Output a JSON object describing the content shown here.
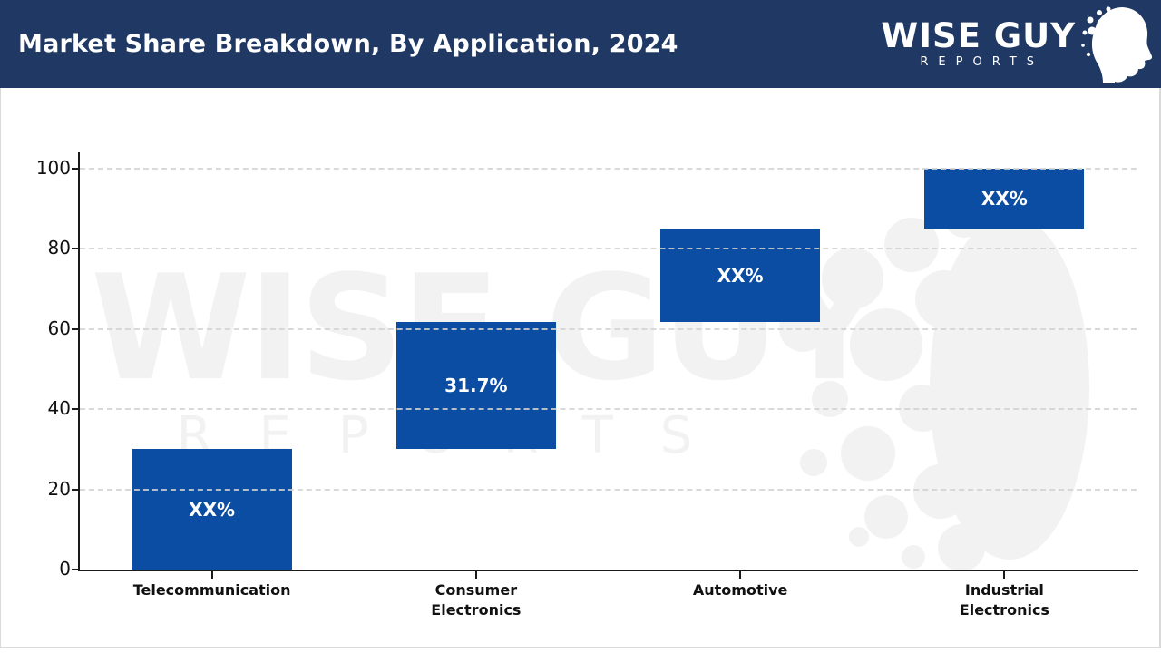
{
  "header": {
    "title": "Market Share Breakdown, By Application, 2024",
    "logo": {
      "line1": "WISE GUY",
      "line2": "REPORTS"
    }
  },
  "watermark": {
    "line1": "WISE GUY",
    "line2": "REPORTS"
  },
  "chart_data": {
    "type": "bar",
    "subtype": "waterfall",
    "title": "Market Share Breakdown, By Application, 2024",
    "categories": [
      "Telecommunication",
      "Consumer\nElectronics",
      "Automotive",
      "Industrial\nElectronics"
    ],
    "segments": [
      {
        "category": "Telecommunication",
        "start": 0,
        "end": 30,
        "label": "XX%"
      },
      {
        "category": "Consumer Electronics",
        "start": 30,
        "end": 61.7,
        "label": "31.7%"
      },
      {
        "category": "Automotive",
        "start": 61.7,
        "end": 85,
        "label": "XX%"
      },
      {
        "category": "Industrial Electronics",
        "start": 85,
        "end": 100,
        "label": "XX%"
      }
    ],
    "ylim": [
      0,
      100
    ],
    "yticks": [
      0,
      20,
      40,
      60,
      80,
      100
    ],
    "xlabel": "",
    "ylabel": "",
    "grid": "dashed-horizontal",
    "legend": "none",
    "bar_color": "#0b4da2",
    "bar_label_color": "#ffffff"
  },
  "colors": {
    "header_bg": "#1f3864",
    "bar": "#0b4da2",
    "grid": "#d9d9d9",
    "axis": "#1a1a1a",
    "watermark": "#f2f2f2"
  }
}
